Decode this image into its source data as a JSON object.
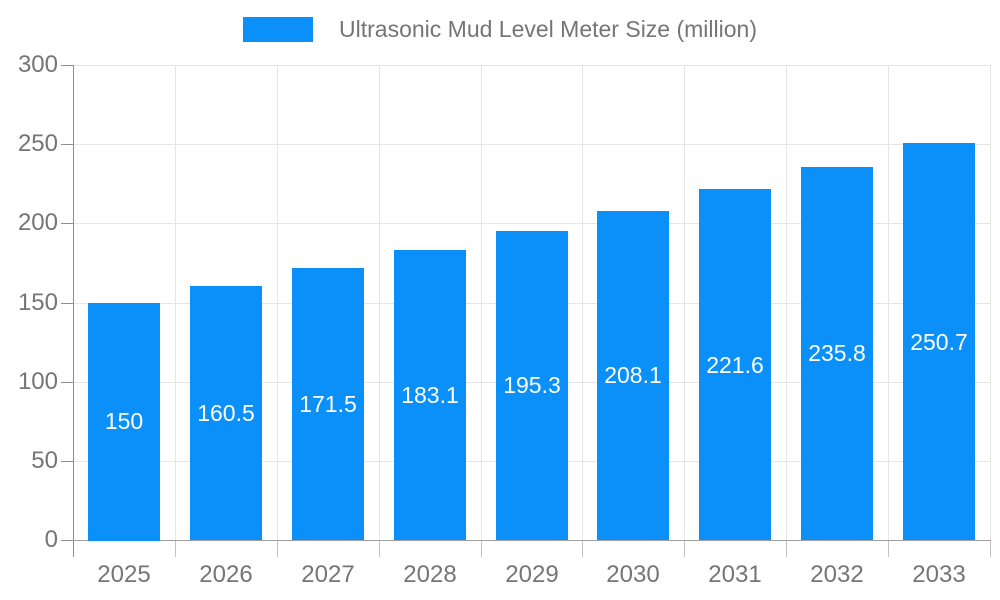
{
  "legend": {
    "label": "Ultrasonic Mud Level Meter Size (million)"
  },
  "colors": {
    "bar": "#0a90f8",
    "bar_label": "#ffffff",
    "axis_text": "#757575",
    "gridline": "#e6e6e6",
    "y_axis_line": "#8f8f8f",
    "x_axis_line": "#9e9e9e"
  },
  "chart_data": {
    "type": "bar",
    "title": "Ultrasonic Mud Level Meter Size (million)",
    "categories": [
      "2025",
      "2026",
      "2027",
      "2028",
      "2029",
      "2030",
      "2031",
      "2032",
      "2033"
    ],
    "values": [
      150,
      160.5,
      171.5,
      183.1,
      195.3,
      208.1,
      221.6,
      235.8,
      250.7
    ],
    "xlabel": "",
    "ylabel": "",
    "ylim": [
      0,
      300
    ],
    "yticks": [
      0,
      50,
      100,
      150,
      200,
      250,
      300
    ],
    "grid": true,
    "legend_position": "top",
    "value_labels": "inside-center-white"
  }
}
